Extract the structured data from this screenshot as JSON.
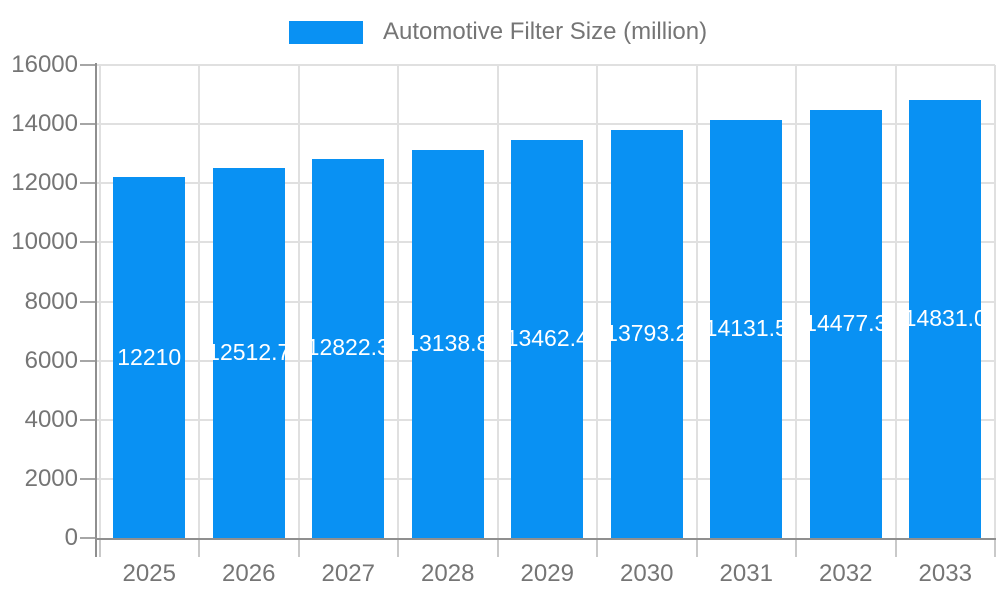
{
  "legend": {
    "label": "Automotive Filter Size (million)",
    "position": "top"
  },
  "chart_data": {
    "type": "bar",
    "title": "Automotive Filter Size (million)",
    "categories": [
      "2025",
      "2026",
      "2027",
      "2028",
      "2029",
      "2030",
      "2031",
      "2032",
      "2033"
    ],
    "values": [
      12210,
      12512.7,
      12822.3,
      13138.8,
      13462.4,
      13793.2,
      14131.5,
      14477.3,
      14831.0
    ],
    "bar_labels": [
      "12210",
      "12512.7",
      "12822.3",
      "13138.8",
      "13462.4",
      "13793.2",
      "14131.5",
      "14477.3",
      "14831.0"
    ],
    "xlabel": "",
    "ylabel": "",
    "ylim": [
      0,
      16000
    ],
    "y_ticks": [
      0,
      2000,
      4000,
      6000,
      8000,
      10000,
      12000,
      14000,
      16000
    ],
    "grid": true,
    "legend_position": "top",
    "colors": {
      "bar": "#0991f3",
      "bar_label": "#ffffff",
      "axis_text": "#757575",
      "axis_line": "#8f8f8f",
      "gridline": "#e0e0e0",
      "tick": "#c9c9c9"
    }
  }
}
